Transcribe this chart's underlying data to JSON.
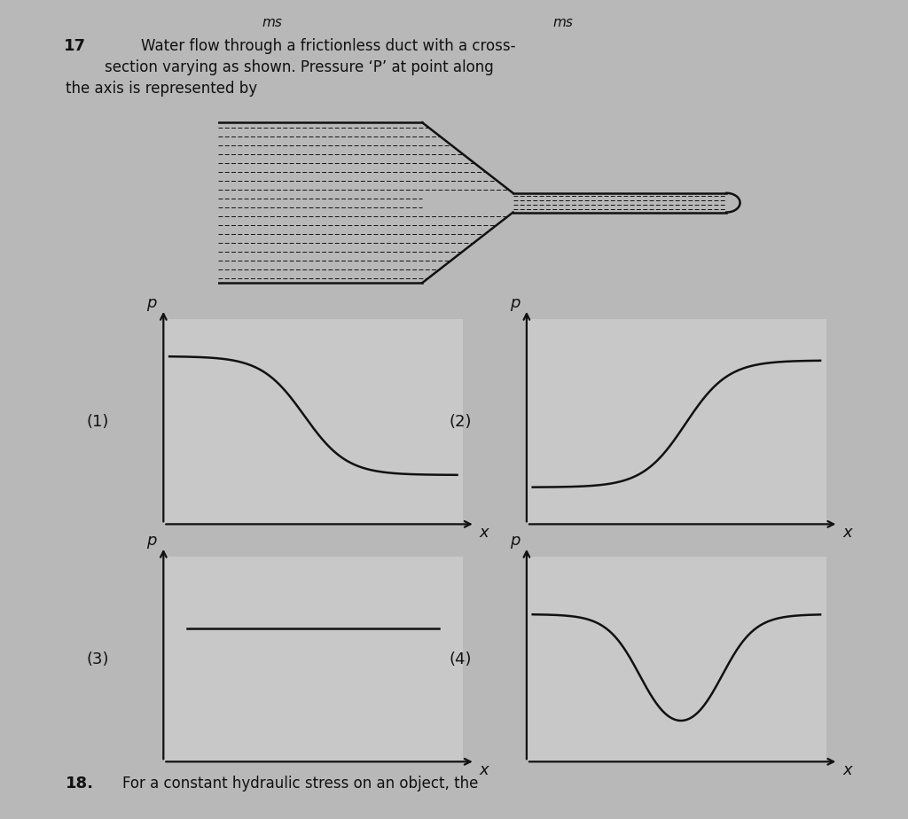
{
  "bg_color": "#b8b8b8",
  "page_color": "#c8c8c8",
  "line_color": "#111111",
  "text_color": "#111111",
  "graph_labels": [
    "(1)",
    "(2)",
    "(3)",
    "(4)"
  ],
  "axis_label_p": "p",
  "axis_label_x": "x",
  "lw_axis": 1.6,
  "lw_curve": 1.8,
  "lw_duct": 1.8,
  "lw_hatch": 0.7
}
